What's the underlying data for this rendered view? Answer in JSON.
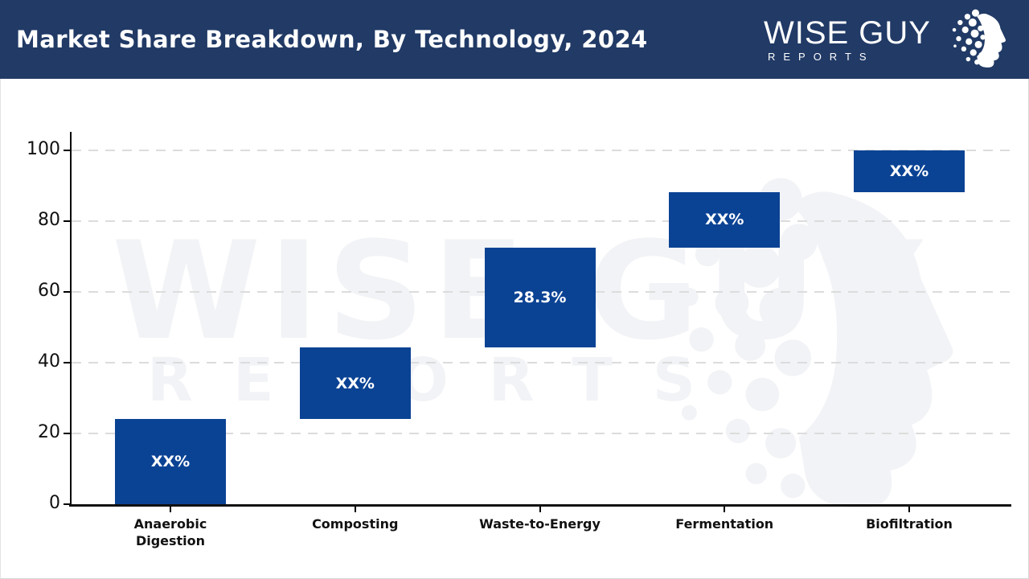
{
  "header": {
    "title": "Market Share Breakdown, By Technology, 2024",
    "background_color": "#213a66",
    "logo": {
      "line1": "WISE GUY",
      "line2": "REPORTS"
    }
  },
  "watermark": {
    "line1": "WISE GUY",
    "line2": "REPORTS"
  },
  "chart_data": {
    "type": "bar",
    "subtype": "waterfall",
    "title": "Market Share Breakdown, By Technology, 2024",
    "categories": [
      "Anaerobic\nDigestion",
      "Composting",
      "Waste-to-Energy",
      "Fermentation",
      "Biofiltration"
    ],
    "segments": [
      {
        "category": "Anaerobic Digestion",
        "start": 0,
        "end": 24,
        "share": 24,
        "label": "XX%"
      },
      {
        "category": "Composting",
        "start": 24,
        "end": 44.3,
        "share": 20.3,
        "label": "XX%"
      },
      {
        "category": "Waste-to-Energy",
        "start": 44.3,
        "end": 72.6,
        "share": 28.3,
        "label": "28.3%"
      },
      {
        "category": "Fermentation",
        "start": 72.6,
        "end": 88.2,
        "share": 15.6,
        "label": "XX%"
      },
      {
        "category": "Biofiltration",
        "start": 88.2,
        "end": 100,
        "share": 11.8,
        "label": "XX%"
      }
    ],
    "bar_color": "#0b4394",
    "label_color": "#ffffff",
    "xlabel": "",
    "ylabel": "",
    "ylim": [
      0,
      100
    ],
    "yticks": [
      0,
      20,
      40,
      60,
      80,
      100
    ],
    "grid": "horizontal-dashed",
    "legend": "none"
  }
}
